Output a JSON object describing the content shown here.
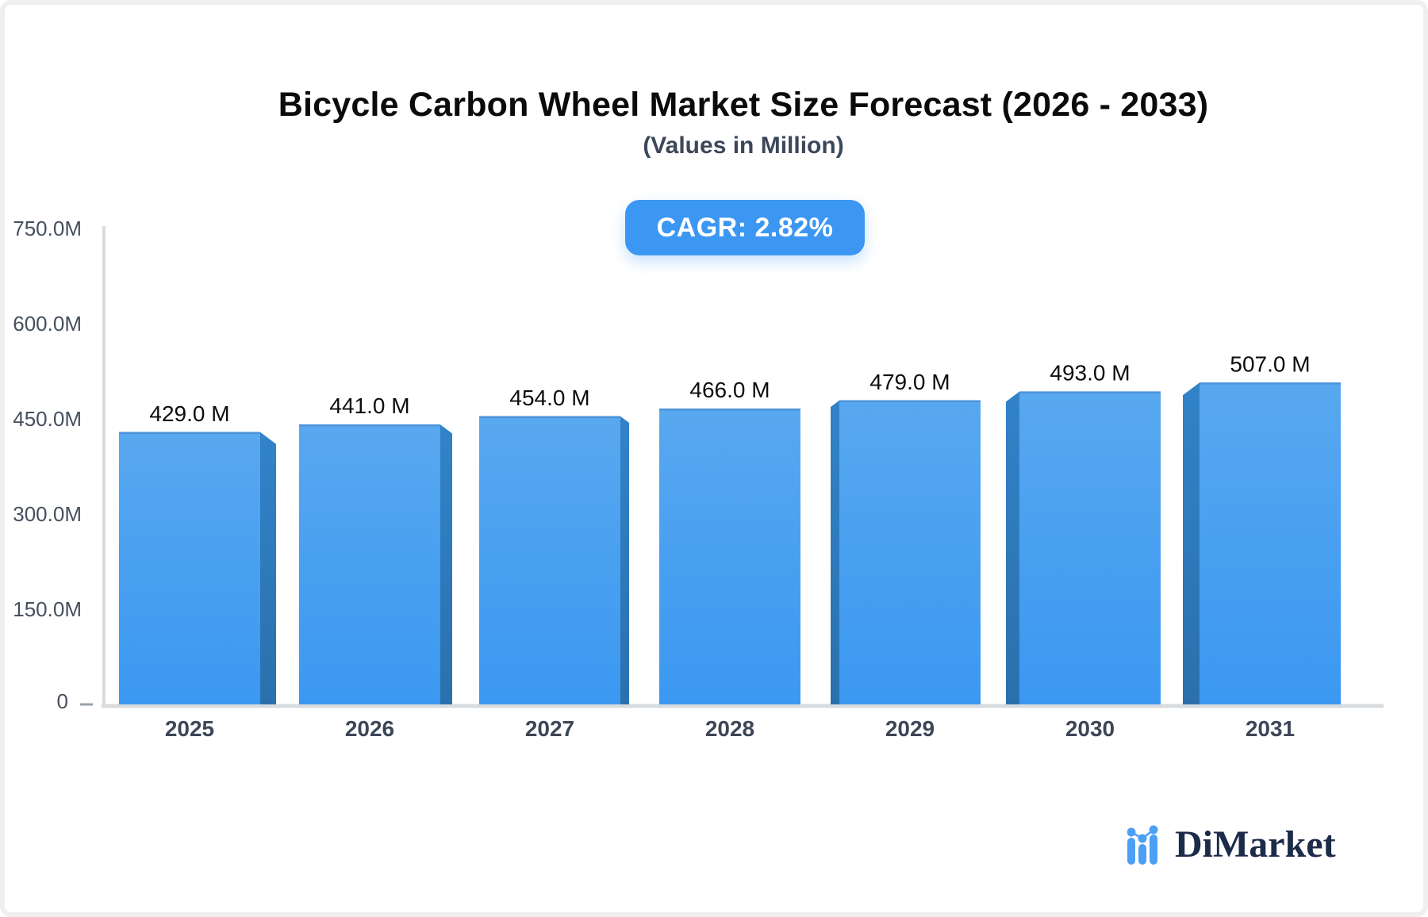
{
  "page": {
    "background": "#ffffff",
    "frame_color": "#efefef"
  },
  "header": {
    "title": "Bicycle Carbon Wheel Market Size Forecast (2026 - 2033)",
    "subtitle": "(Values in Million)",
    "cagr_label": "CAGR: 2.82%",
    "badge_color": "#3C97F3"
  },
  "chart_data": {
    "type": "bar",
    "title": "Bicycle Carbon Wheel Market Size Forecast (2026 - 2033)",
    "subtitle": "(Values in Million)",
    "unit": "Million",
    "categories": [
      "2025",
      "2026",
      "2027",
      "2028",
      "2029",
      "2030",
      "2031"
    ],
    "values": [
      429,
      441,
      454,
      466,
      479,
      493,
      507
    ],
    "value_labels": [
      "429.0 M",
      "441.0 M",
      "454.0 M",
      "466.0 M",
      "479.0 M",
      "493.0 M",
      "507.0 M"
    ],
    "y_ticks": [
      750,
      600,
      450,
      300,
      150,
      0
    ],
    "y_tick_labels": [
      "750.0M",
      "600.0M",
      "450.0M",
      "300.0M",
      "150.0M",
      "0"
    ],
    "ylim": [
      0,
      750
    ],
    "grid": "off",
    "legend": "none",
    "cagr": "2.82%",
    "colors": {
      "bar_face_top": "#58A8EF",
      "bar_face_bottom": "#3B98F1",
      "bar_top_edge": "#4E93DA",
      "bar_side_top": "#3183C9",
      "bar_side_bottom": "#2B70AC",
      "axis_line": "#D9DCDF",
      "zero_tick": "#98A1AB",
      "value_label": "#0D0D0D",
      "y_tick_label": "#46505E",
      "category_label": "#3C4657"
    }
  },
  "footer": {
    "brand": "DiMarket",
    "brand_color": "#1C2B49",
    "icon_color": "#4BA0F5",
    "icon": "mini-bar-line-chart-icon"
  }
}
